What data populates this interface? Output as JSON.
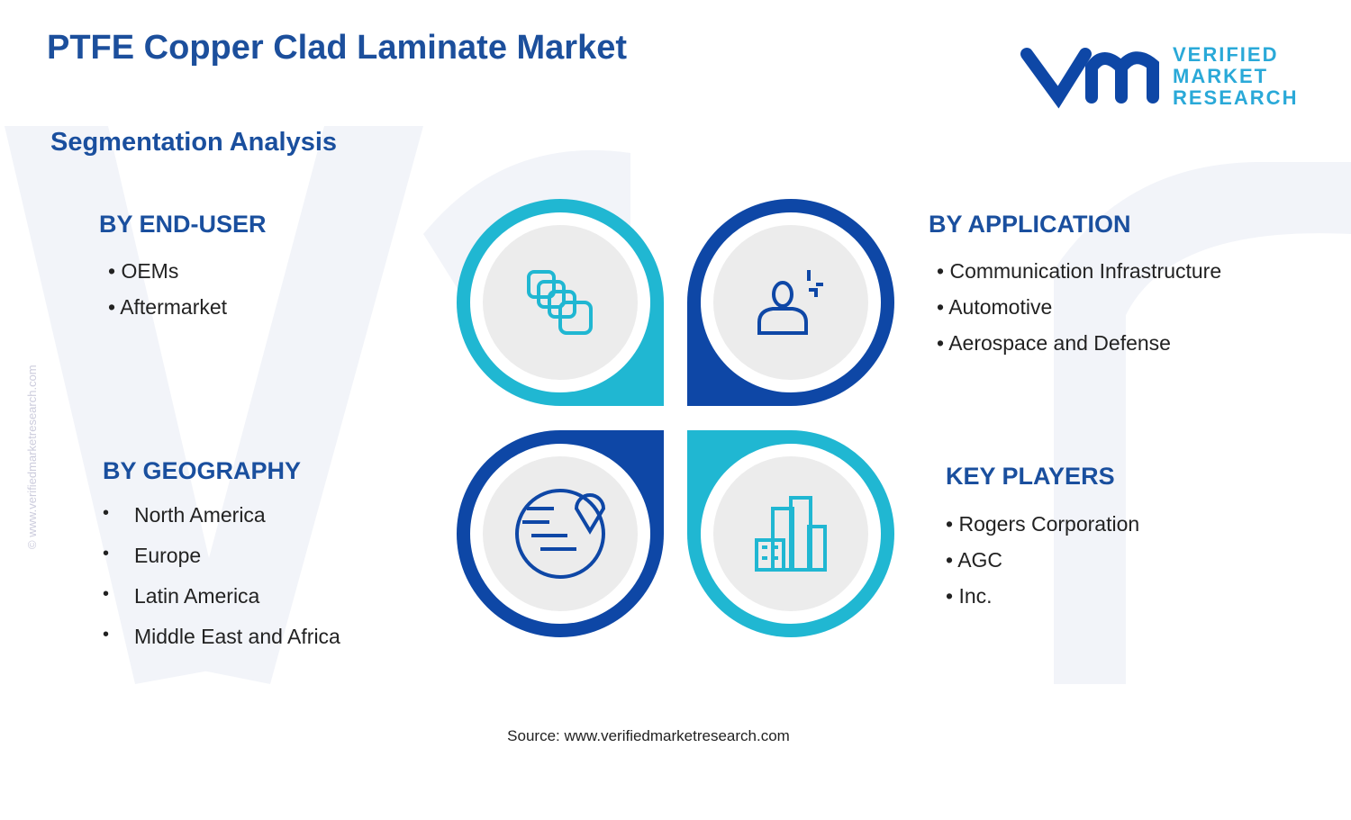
{
  "header": {
    "title": "PTFE Copper Clad Laminate Market",
    "subtitle": "Segmentation Analysis"
  },
  "logo": {
    "line1": "VERIFIED",
    "line2": "MARKET",
    "line3": "RESEARCH"
  },
  "watermark": "© www.verifiedmarketresearch.com",
  "segments": [
    {
      "title": "BY END-USER",
      "items": [
        "OEMs",
        "Aftermarket"
      ]
    },
    {
      "title": "BY APPLICATION",
      "items": [
        "Communication Infrastructure",
        "Automotive",
        "Aerospace and Defense"
      ]
    },
    {
      "title": "BY GEOGRAPHY",
      "items": [
        "North America",
        "Europe",
        "Latin America",
        "Middle East and Africa"
      ]
    },
    {
      "title": "KEY PLAYERS",
      "items": [
        "Rogers Corporation",
        "AGC",
        "Inc."
      ]
    }
  ],
  "source": "Source: www.verifiedmarketresearch.com"
}
